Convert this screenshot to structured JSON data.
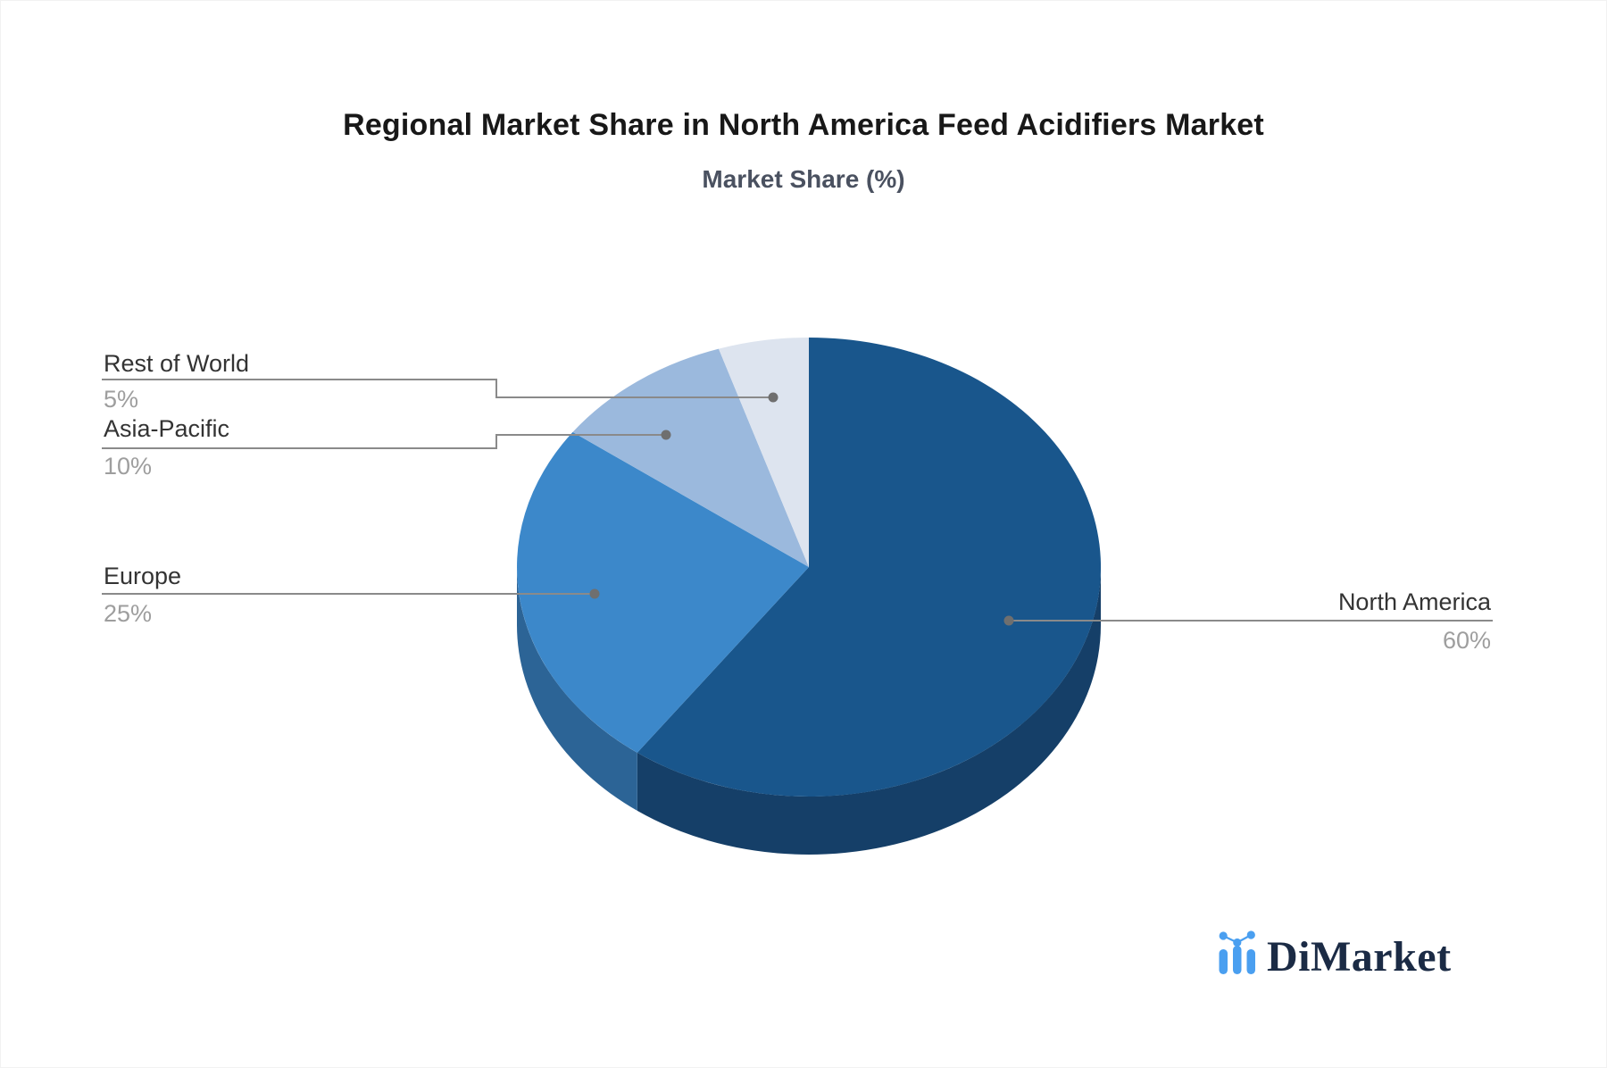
{
  "title": "Regional Market Share in North America Feed Acidifiers Market",
  "subtitle": "Market Share (%)",
  "chart_data": {
    "type": "pie",
    "title": "Regional Market Share in North America Feed Acidifiers Market",
    "subtitle": "Market Share (%)",
    "unit": "%",
    "start_angle_deg": 0,
    "direction": "clockwise",
    "pseudo_3d": true,
    "legend_position": "callout-labels",
    "slices": [
      {
        "label": "North America",
        "value": 60,
        "pct_label": "60%",
        "color": "#19568C",
        "side_color": "#153F68",
        "label_side": "right"
      },
      {
        "label": "Europe",
        "value": 25,
        "pct_label": "25%",
        "color": "#3C88CA",
        "side_color": "#2C6496",
        "label_side": "left"
      },
      {
        "label": "Asia-Pacific",
        "value": 10,
        "pct_label": "10%",
        "color": "#9BB9DD",
        "label_side": "left"
      },
      {
        "label": "Rest of World",
        "value": 5,
        "pct_label": "5%",
        "color": "#DDE4EF",
        "label_side": "left"
      }
    ],
    "leader_line_color": "#8A8A8A",
    "leader_dot_color": "#6F6F6F",
    "label_color": "#333333",
    "value_color": "#9E9E9E"
  },
  "branding": {
    "logo_text": "DiMarket",
    "logo_color": "#1B2B45",
    "icon_color": "#4A9FF0"
  }
}
